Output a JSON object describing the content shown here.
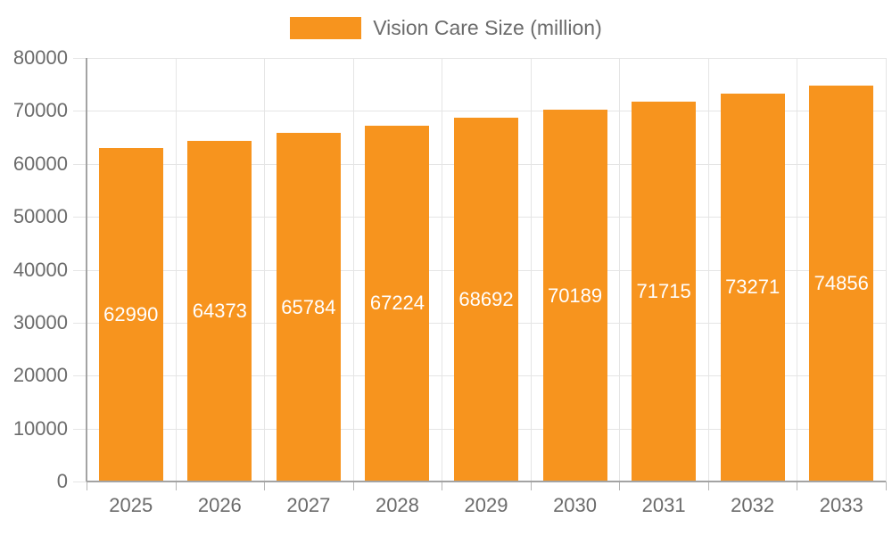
{
  "chart_data": {
    "type": "bar",
    "title": "",
    "legend": "Vision Care Size (million)",
    "legend_position": "top-center",
    "categories": [
      "2025",
      "2026",
      "2027",
      "2028",
      "2029",
      "2030",
      "2031",
      "2032",
      "2033"
    ],
    "series": [
      {
        "name": "Vision Care Size (million)",
        "values": [
          62990,
          64373,
          65784,
          67224,
          68692,
          70189,
          71715,
          73271,
          74856
        ]
      }
    ],
    "bar_value_labels": [
      "62990",
      "64373",
      "65784",
      "67224",
      "68692",
      "70189",
      "71715",
      "73271",
      "74856"
    ],
    "xlabel": "",
    "ylabel": "",
    "ylim": [
      0,
      80000
    ],
    "yticks": [
      0,
      10000,
      20000,
      30000,
      40000,
      50000,
      60000,
      70000,
      80000
    ],
    "ytick_labels": [
      "0",
      "10000",
      "20000",
      "30000",
      "40000",
      "50000",
      "60000",
      "70000",
      "80000"
    ],
    "grid": "on"
  },
  "colors": {
    "bar": "#f7941e",
    "gridline": "#e5e5e5",
    "axis_line": "#a3a3a3",
    "x_tick": "#b5b5b5",
    "y_tick": "#e5e5e5",
    "axis_text": "#6b6b6b",
    "bar_label_text": "#ffffff",
    "background": "#ffffff"
  }
}
